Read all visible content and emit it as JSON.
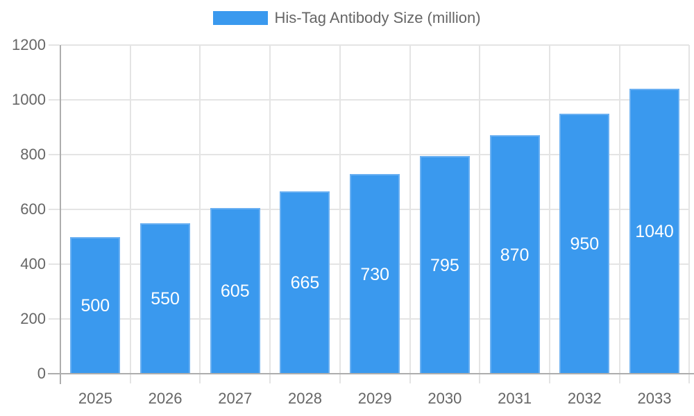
{
  "chart_data": {
    "type": "bar",
    "title": "",
    "legend_label": "His-Tag Antibody Size (million)",
    "legend_position": "top",
    "categories": [
      "2025",
      "2026",
      "2027",
      "2028",
      "2029",
      "2030",
      "2031",
      "2032",
      "2033"
    ],
    "series": [
      {
        "name": "His-Tag Antibody Size (million)",
        "values": [
          500,
          550,
          605,
          665,
          730,
          795,
          870,
          950,
          1040
        ]
      }
    ],
    "bar_value_labels": [
      "500",
      "550",
      "605",
      "665",
      "730",
      "795",
      "870",
      "950",
      "1040"
    ],
    "xlabel": "",
    "ylabel": "",
    "ylim": [
      0,
      1200
    ],
    "yticks": [
      0,
      200,
      400,
      600,
      800,
      1000,
      1200
    ],
    "grid": true,
    "colors": {
      "bar_fill": "#3A99EE",
      "bar_border": "#6AB0F2",
      "value_text": "#FFFFFF",
      "axis_text": "#666666",
      "grid_line": "#E4E4E4",
      "axis_line": "#ADADAD",
      "background": "#FFFFFF"
    }
  }
}
